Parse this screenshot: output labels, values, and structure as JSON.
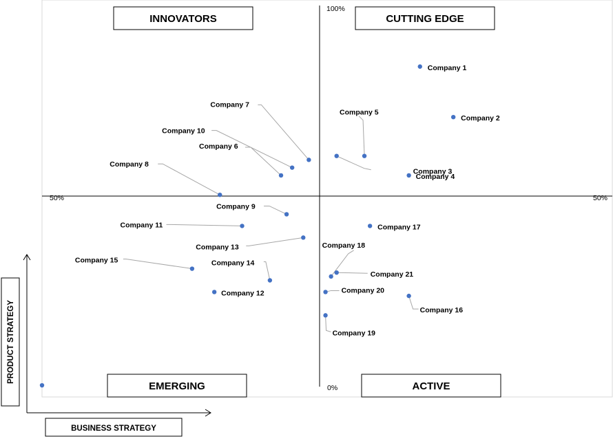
{
  "chart_data": {
    "type": "scatter",
    "quadrants": {
      "top_left": "INNOVATORS",
      "top_right": "CUTTING EDGE",
      "bottom_left": "EMERGING",
      "bottom_right": "ACTIVE"
    },
    "axis_marks": {
      "top": "100%",
      "bottom": "0%",
      "left": "50%",
      "right": "50%"
    },
    "xlabel": "BUSINESS STRATEGY",
    "ylabel": "PRODUCT STRATEGY",
    "points": [
      {
        "name": "Company 1",
        "x": 0.68,
        "y": 0.85
      },
      {
        "name": "Company 2",
        "x": 0.74,
        "y": 0.72
      },
      {
        "name": "Company 3",
        "x": 0.53,
        "y": 0.62
      },
      {
        "name": "Company 4",
        "x": 0.66,
        "y": 0.57
      },
      {
        "name": "Company 5",
        "x": 0.58,
        "y": 0.62
      },
      {
        "name": "Company 6",
        "x": 0.43,
        "y": 0.57
      },
      {
        "name": "Company 7",
        "x": 0.48,
        "y": 0.61
      },
      {
        "name": "Company 8",
        "x": 0.32,
        "y": 0.52
      },
      {
        "name": "Company 9",
        "x": 0.44,
        "y": 0.47
      },
      {
        "name": "Company 10",
        "x": 0.45,
        "y": 0.59
      },
      {
        "name": "Company 11",
        "x": 0.36,
        "y": 0.44
      },
      {
        "name": "Company 12",
        "x": 0.31,
        "y": 0.27
      },
      {
        "name": "Company 13",
        "x": 0.47,
        "y": 0.41
      },
      {
        "name": "Company 14",
        "x": 0.41,
        "y": 0.3
      },
      {
        "name": "Company 15",
        "x": 0.27,
        "y": 0.33
      },
      {
        "name": "Company 16",
        "x": 0.66,
        "y": 0.26
      },
      {
        "name": "Company 17",
        "x": 0.59,
        "y": 0.44
      },
      {
        "name": "Company 18",
        "x": 0.52,
        "y": 0.31
      },
      {
        "name": "Company 19",
        "x": 0.51,
        "y": 0.21
      },
      {
        "name": "Company 20",
        "x": 0.51,
        "y": 0.27
      },
      {
        "name": "Company 21",
        "x": 0.53,
        "y": 0.32
      },
      {
        "name": "",
        "x": 0.0,
        "y": 0.03
      }
    ],
    "marker_color": "#4472C4",
    "leader_color": "#A6A6A6",
    "grid": false
  }
}
